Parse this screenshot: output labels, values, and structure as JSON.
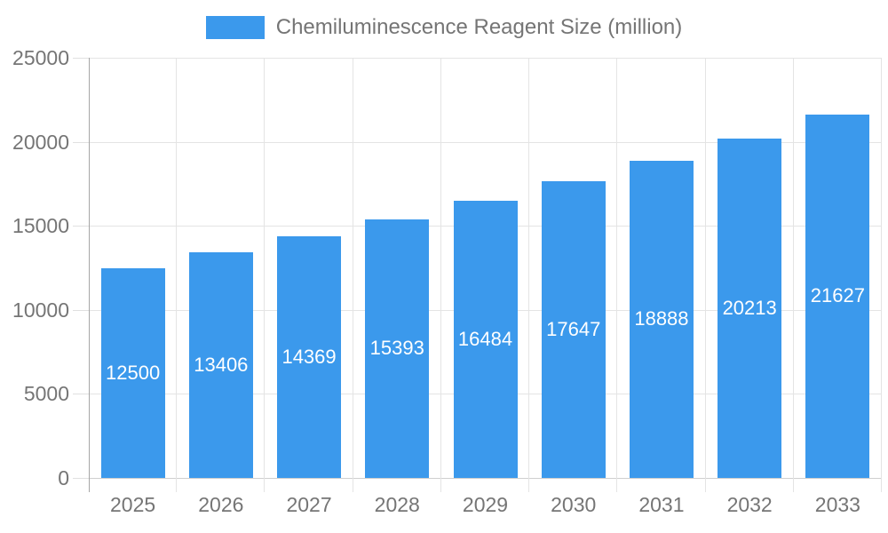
{
  "chart_data": {
    "type": "bar",
    "title": "Chemiluminescence Reagent Size (million)",
    "categories": [
      "2025",
      "2026",
      "2027",
      "2028",
      "2029",
      "2030",
      "2031",
      "2032",
      "2033"
    ],
    "values": [
      12500,
      13406,
      14369,
      15393,
      16484,
      17647,
      18888,
      20213,
      21627
    ],
    "series_name": "Chemiluminescence Reagent Size (million)",
    "xlabel": "",
    "ylabel": "",
    "ylim": [
      0,
      25000
    ],
    "yticks": [
      0,
      5000,
      10000,
      15000,
      20000,
      25000
    ],
    "grid": true,
    "legend_position": "top",
    "value_labels": "inside-center"
  },
  "colors": {
    "bar": "#3b99ec",
    "grid": "#e4e4e4",
    "axis_line": "#a6a6a6",
    "baseline": "#cfcfcf",
    "tick": "#e0e0e0",
    "text": "#757575",
    "value_text": "#ffffff",
    "background": "#ffffff"
  }
}
